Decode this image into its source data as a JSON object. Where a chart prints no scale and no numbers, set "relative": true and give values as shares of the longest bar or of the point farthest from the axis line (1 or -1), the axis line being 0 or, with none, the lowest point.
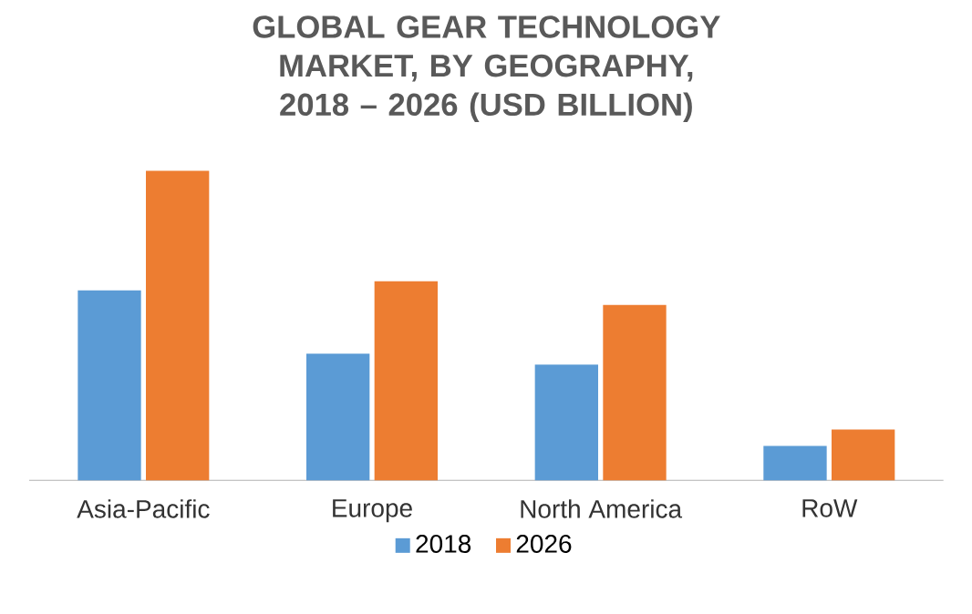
{
  "chart_data": {
    "type": "bar",
    "title": "GLOBAL GEAR TECHNOLOGY MARKET, BY GEOGRAPHY, 2018 – 2026 (USD BILLION)",
    "categories": [
      "Asia-Pacific",
      "Europe",
      "North America",
      "RoW"
    ],
    "series": [
      {
        "name": "2018",
        "color": "#5b9bd5",
        "values": [
          0.614,
          0.409,
          0.374,
          0.111
        ]
      },
      {
        "name": "2026",
        "color": "#ed7d31",
        "values": [
          1,
          0.643,
          0.567,
          0.164
        ]
      }
    ],
    "relative": true,
    "legend": "bottom",
    "grid": false
  }
}
